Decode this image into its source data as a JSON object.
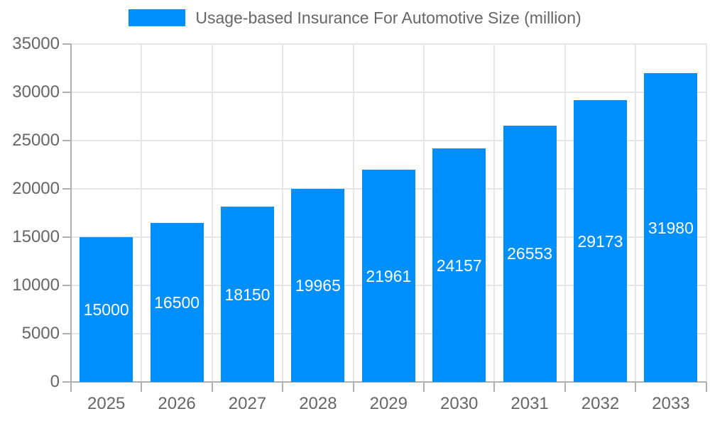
{
  "chart_data": {
    "type": "bar",
    "title": "Usage-based Insurance For Automotive Size (million)",
    "categories": [
      "2025",
      "2026",
      "2027",
      "2028",
      "2029",
      "2030",
      "2031",
      "2032",
      "2033"
    ],
    "values": [
      15000,
      16500,
      18150,
      19965,
      21961,
      24157,
      26553,
      29173,
      31980
    ],
    "value_labels": [
      "15000",
      "16500",
      "18150",
      "19965",
      "21961",
      "24157",
      "26553",
      "29173",
      "31980"
    ],
    "ytick_labels": [
      "0",
      "5000",
      "10000",
      "15000",
      "20000",
      "25000",
      "30000",
      "35000"
    ],
    "xlabel": "",
    "ylabel": "",
    "ylim": [
      0,
      35000
    ],
    "ytick_step": 5000,
    "grid": true,
    "legend_position": "top",
    "value_label_position": "inside-center",
    "colors": {
      "bar": "#008FFB",
      "value_label": "#FFFFFF",
      "axis_text": "#666666",
      "gridline": "#E6E6E6",
      "axis_line": "#B0B0B0",
      "background": "#FFFFFF"
    }
  }
}
